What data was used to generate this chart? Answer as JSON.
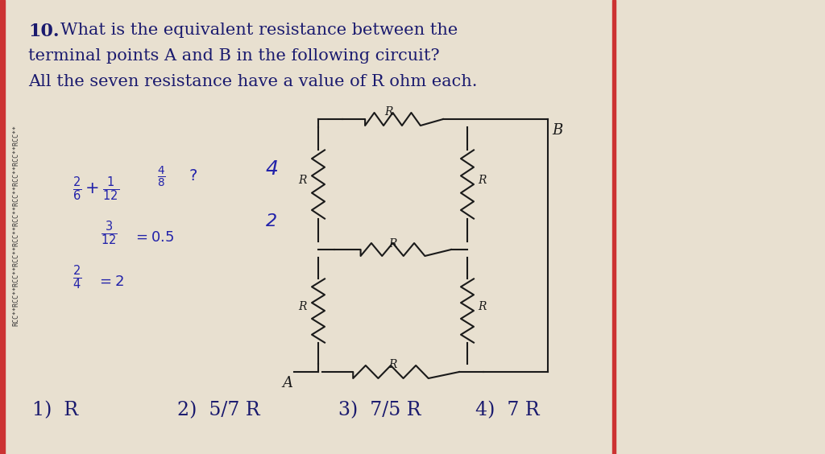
{
  "bg_color": "#e8e0d0",
  "title_number": "10.",
  "question_line1": "What is the equivalent resistance between the",
  "question_line2": "terminal points A and B in the following circuit?",
  "question_line3": "All the seven resistance have a value of R ohm each.",
  "answers": [
    "1)  R",
    "2)  5/7 R",
    "3)  7/5 R",
    "4)  7 R"
  ],
  "side_text": "RCC**RCC**RCC**RCC**RCC**RCC**RCC**RCC**RCC**RCC**",
  "text_color": "#1a1a2e",
  "handwriting_color": "#2222aa",
  "ink_color": "#1a1a6e",
  "circuit_color": "#1a1a1a",
  "red_line_color": "#cc0000"
}
